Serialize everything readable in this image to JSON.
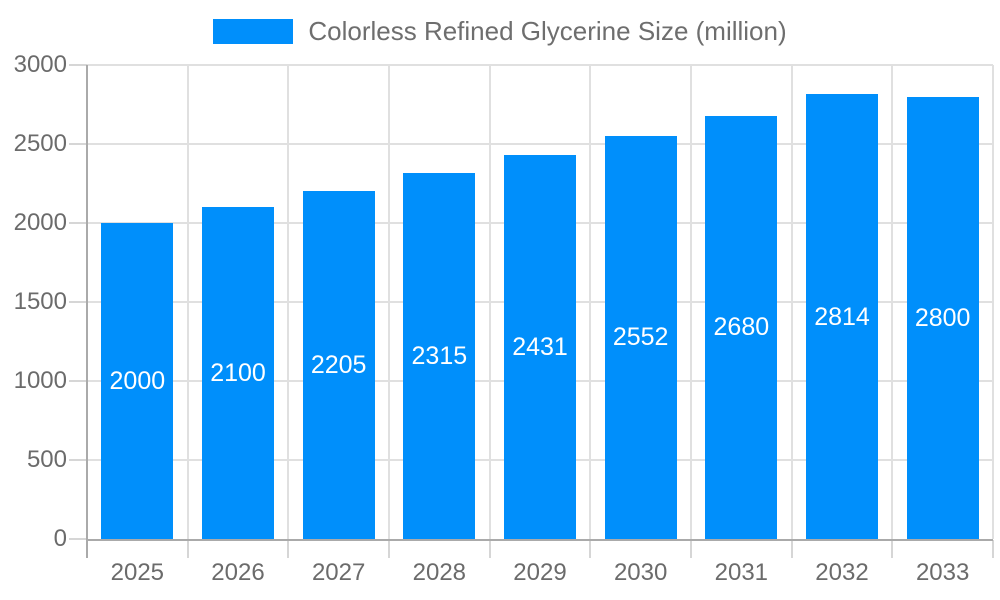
{
  "legend": {
    "label": "Colorless Refined Glycerine Size (million)"
  },
  "colors": {
    "bar_fill": "#008FFB",
    "grid_line": "#e0e0e0",
    "axis_line": "#aaaaaa",
    "tick_line": "#d6d6d6",
    "axis_text": "#6b6b6b",
    "legend_text": "#6e6e6e",
    "data_label_text": "#ffffff",
    "background": "#ffffff"
  },
  "chart_data": {
    "type": "bar",
    "title": "Colorless Refined Glycerine Size (million)",
    "categories": [
      "2025",
      "2026",
      "2027",
      "2028",
      "2029",
      "2030",
      "2031",
      "2032",
      "2033"
    ],
    "values": [
      2000,
      2100,
      2205,
      2315,
      2431,
      2552,
      2680,
      2814,
      2800
    ],
    "series_name": "Colorless Refined Glycerine Size (million)",
    "xlabel": "",
    "ylabel": "",
    "ylim": [
      0,
      3000
    ],
    "y_ticks": [
      0,
      500,
      1000,
      1500,
      2000,
      2500,
      3000
    ],
    "grid": true,
    "legend_position": "top",
    "data_labels_position": "inside-center",
    "data_labels_color": "#ffffff"
  }
}
